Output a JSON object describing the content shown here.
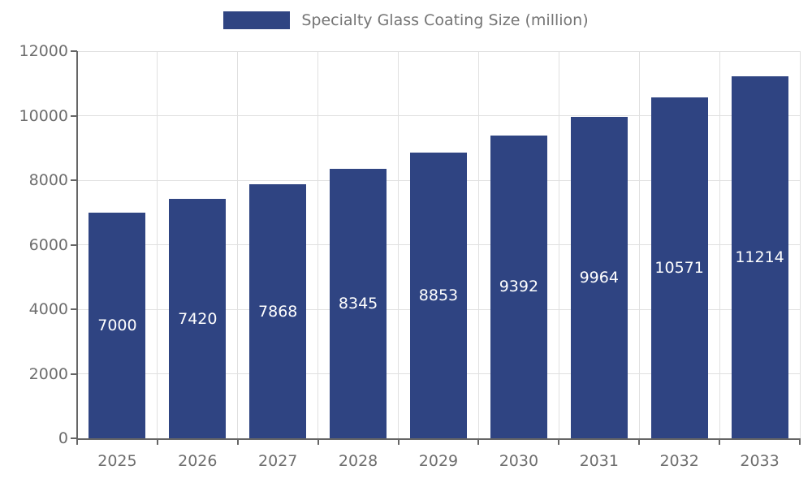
{
  "chart_data": {
    "type": "bar",
    "title": "Specialty Glass Coating Size (million)",
    "categories": [
      "2025",
      "2026",
      "2027",
      "2028",
      "2029",
      "2030",
      "2031",
      "2032",
      "2033"
    ],
    "values": [
      7000,
      7420,
      7868,
      8345,
      8853,
      9392,
      9964,
      10571,
      11214
    ],
    "xlabel": "",
    "ylabel": "",
    "ylim": [
      0,
      12000
    ],
    "ytick_step": 2000,
    "grid": true,
    "legend_position": "top",
    "colors": {
      "bar": "#2F4482",
      "bar_value_label": "#FFFFFF",
      "axis_text": "#6E6E6E",
      "legend_text": "#757575",
      "grid_line": "#E0E0E0",
      "axis_line": "#666666"
    }
  }
}
